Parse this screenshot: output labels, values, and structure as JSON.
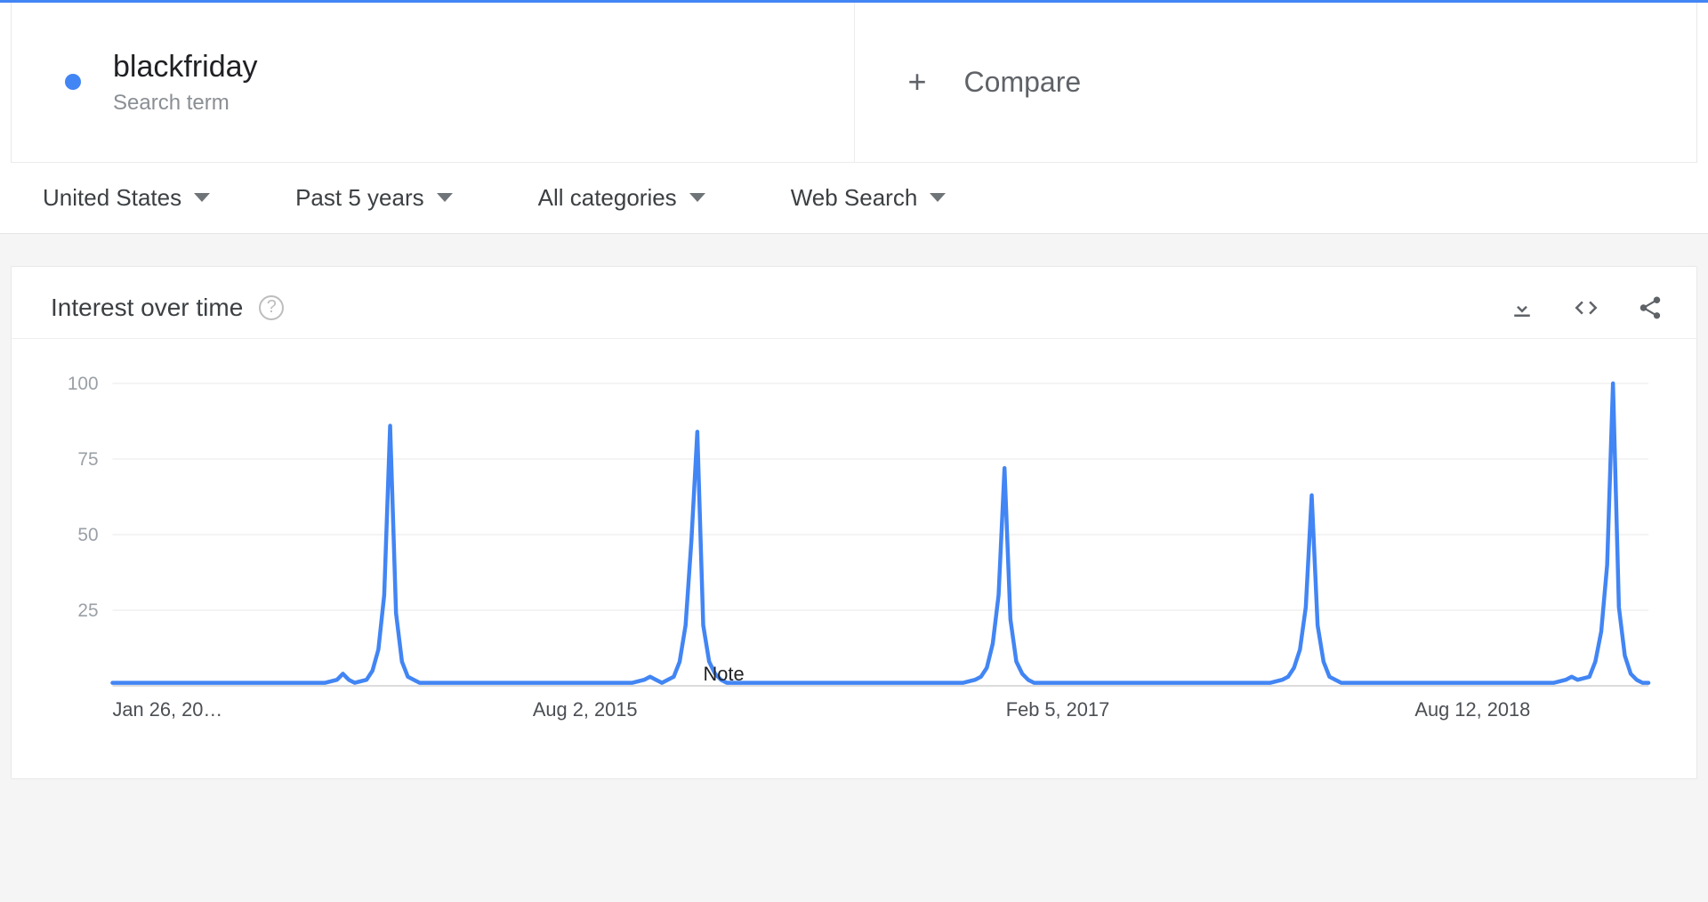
{
  "colors": {
    "accent": "#4285f4",
    "text_primary": "#202124",
    "text_secondary": "#5f6368",
    "text_muted": "#8a8f94",
    "grid": "#e9e9e9",
    "baseline": "#d0d0d0",
    "card_border": "#e8e8e8",
    "canvas_bg": "#f5f5f5"
  },
  "search_term": {
    "title": "blackfriday",
    "subtitle": "Search term"
  },
  "compare": {
    "label": "Compare"
  },
  "filters": {
    "region": "United States",
    "timeframe": "Past 5 years",
    "category": "All categories",
    "search_type": "Web Search"
  },
  "card": {
    "title": "Interest over time"
  },
  "chart": {
    "type": "line",
    "series_color": "#4285f4",
    "line_width": 4.5,
    "background_color": "#ffffff",
    "grid_color": "#e9e9e9",
    "baseline_color": "#d0d0d0",
    "ylim": [
      0,
      100
    ],
    "yticks": [
      25,
      50,
      75,
      100
    ],
    "y_tick_labels": [
      "25",
      "50",
      "75",
      "100"
    ],
    "xlim": [
      0,
      260
    ],
    "x_tick_positions": [
      0,
      80,
      160,
      240
    ],
    "x_tick_labels": [
      "Jan 26, 20…",
      "Aug 2, 2015",
      "Feb 5, 2017",
      "Aug 12, 2018"
    ],
    "note": {
      "label": "Note",
      "x": 100
    },
    "data": [
      [
        0,
        1
      ],
      [
        4,
        1
      ],
      [
        8,
        1
      ],
      [
        12,
        1
      ],
      [
        16,
        1
      ],
      [
        20,
        1
      ],
      [
        24,
        1
      ],
      [
        28,
        1
      ],
      [
        32,
        1
      ],
      [
        36,
        1
      ],
      [
        38,
        2
      ],
      [
        39,
        4
      ],
      [
        40,
        2
      ],
      [
        41,
        1
      ],
      [
        43,
        2
      ],
      [
        44,
        5
      ],
      [
        45,
        12
      ],
      [
        46,
        30
      ],
      [
        47,
        86
      ],
      [
        48,
        24
      ],
      [
        49,
        8
      ],
      [
        50,
        3
      ],
      [
        51,
        2
      ],
      [
        52,
        1
      ],
      [
        56,
        1
      ],
      [
        60,
        1
      ],
      [
        64,
        1
      ],
      [
        68,
        1
      ],
      [
        72,
        1
      ],
      [
        76,
        1
      ],
      [
        80,
        1
      ],
      [
        84,
        1
      ],
      [
        88,
        1
      ],
      [
        90,
        2
      ],
      [
        91,
        3
      ],
      [
        92,
        2
      ],
      [
        93,
        1
      ],
      [
        95,
        3
      ],
      [
        96,
        8
      ],
      [
        97,
        20
      ],
      [
        98,
        48
      ],
      [
        99,
        84
      ],
      [
        100,
        20
      ],
      [
        101,
        8
      ],
      [
        102,
        4
      ],
      [
        103,
        2
      ],
      [
        104,
        1
      ],
      [
        108,
        1
      ],
      [
        112,
        1
      ],
      [
        116,
        1
      ],
      [
        120,
        1
      ],
      [
        124,
        1
      ],
      [
        128,
        1
      ],
      [
        132,
        1
      ],
      [
        136,
        1
      ],
      [
        140,
        1
      ],
      [
        144,
        1
      ],
      [
        146,
        2
      ],
      [
        147,
        3
      ],
      [
        148,
        6
      ],
      [
        149,
        14
      ],
      [
        150,
        30
      ],
      [
        151,
        72
      ],
      [
        152,
        22
      ],
      [
        153,
        8
      ],
      [
        154,
        4
      ],
      [
        155,
        2
      ],
      [
        156,
        1
      ],
      [
        160,
        1
      ],
      [
        164,
        1
      ],
      [
        168,
        1
      ],
      [
        172,
        1
      ],
      [
        176,
        1
      ],
      [
        180,
        1
      ],
      [
        184,
        1
      ],
      [
        188,
        1
      ],
      [
        192,
        1
      ],
      [
        196,
        1
      ],
      [
        198,
        2
      ],
      [
        199,
        3
      ],
      [
        200,
        6
      ],
      [
        201,
        12
      ],
      [
        202,
        26
      ],
      [
        203,
        63
      ],
      [
        204,
        20
      ],
      [
        205,
        8
      ],
      [
        206,
        3
      ],
      [
        207,
        2
      ],
      [
        208,
        1
      ],
      [
        212,
        1
      ],
      [
        216,
        1
      ],
      [
        220,
        1
      ],
      [
        224,
        1
      ],
      [
        228,
        1
      ],
      [
        232,
        1
      ],
      [
        236,
        1
      ],
      [
        240,
        1
      ],
      [
        244,
        1
      ],
      [
        246,
        2
      ],
      [
        247,
        3
      ],
      [
        248,
        2
      ],
      [
        250,
        3
      ],
      [
        251,
        8
      ],
      [
        252,
        18
      ],
      [
        253,
        40
      ],
      [
        254,
        100
      ],
      [
        255,
        26
      ],
      [
        256,
        10
      ],
      [
        257,
        4
      ],
      [
        258,
        2
      ],
      [
        259,
        1
      ],
      [
        260,
        1
      ]
    ]
  }
}
